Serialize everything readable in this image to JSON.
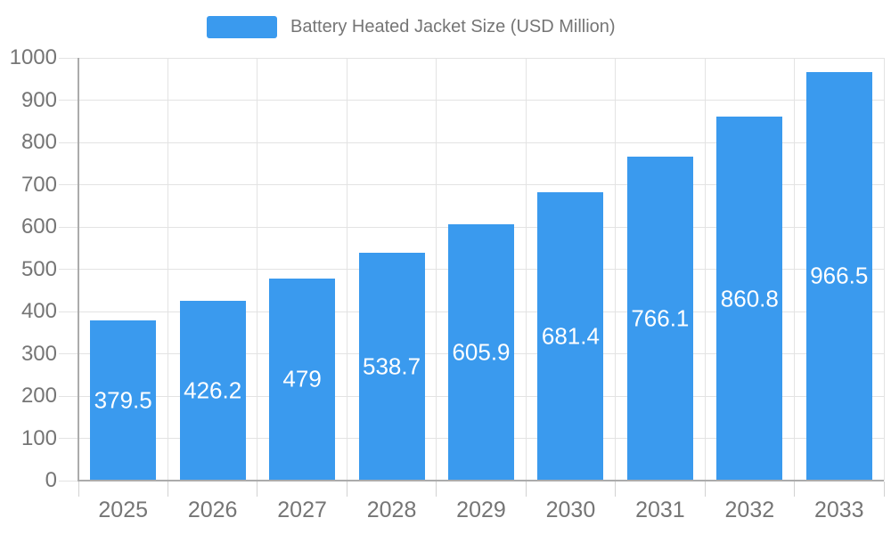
{
  "colors": {
    "bar": "#3A9AEE",
    "grid_line": "#E3E3E3",
    "tick_line": "#D2D2D2",
    "axis_line": "#ABABAB",
    "axis_label": "#757575",
    "legend_text": "#757575",
    "value_label": "#FFFFFF",
    "background": "#FFFFFF"
  },
  "chart_data": {
    "type": "bar",
    "title": "Battery Heated Jacket Size (USD Million)",
    "series_name": "Battery Heated Jacket Size (USD Million)",
    "categories": [
      "2025",
      "2026",
      "2027",
      "2028",
      "2029",
      "2030",
      "2031",
      "2032",
      "2033"
    ],
    "values": [
      379.5,
      426.2,
      479,
      538.7,
      605.9,
      681.4,
      766.1,
      860.8,
      966.5
    ],
    "xlabel": "",
    "ylabel": "",
    "ylim": [
      0,
      1000
    ],
    "y_ticks": [
      0,
      100,
      200,
      300,
      400,
      500,
      600,
      700,
      800,
      900,
      1000
    ],
    "grid": true,
    "legend_position": "top",
    "value_label_position": "inside-center"
  }
}
